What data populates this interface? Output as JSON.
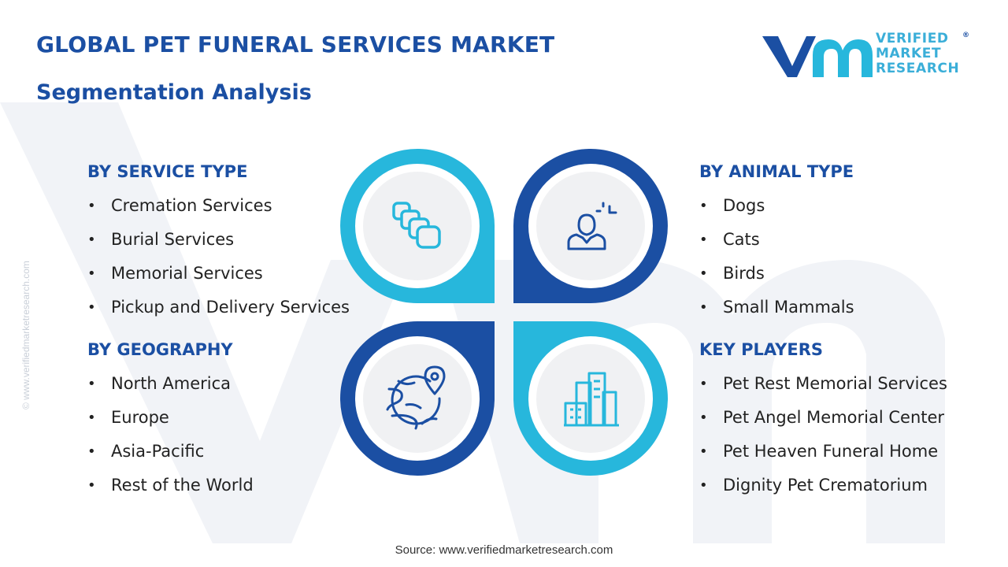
{
  "header": {
    "title": "GLOBAL PET FUNERAL SERVICES MARKET",
    "subtitle": "Segmentation Analysis"
  },
  "logo": {
    "line1": "VERIFIED",
    "line2": "MARKET",
    "line3": "RESEARCH",
    "registered": "®"
  },
  "side_watermark": "© www.verifiedmarketresearch.com",
  "segments": {
    "service_type": {
      "heading": "BY SERVICE TYPE",
      "items": [
        "Cremation Services",
        "Burial Services",
        "Memorial Services",
        "Pickup and Delivery Services"
      ]
    },
    "geography": {
      "heading": "BY GEOGRAPHY",
      "items": [
        "North America",
        "Europe",
        "Asia-Pacific",
        "Rest of the World"
      ]
    },
    "animal_type": {
      "heading": "BY ANIMAL TYPE",
      "items": [
        "Dogs",
        "Cats",
        "Birds",
        "Small Mammals"
      ]
    },
    "key_players": {
      "heading": "KEY PLAYERS",
      "items": [
        "Pet Rest Memorial Services",
        "Pet Angel Memorial Center",
        "Pet Heaven Funeral Home",
        "Dignity Pet Crematorium"
      ]
    }
  },
  "icons": {
    "top_left": "stacked-cards-icon",
    "top_right": "user-profile-icon",
    "bottom_left": "globe-location-icon",
    "bottom_right": "city-buildings-icon"
  },
  "colors": {
    "dark_blue": "#1b4fa3",
    "light_blue": "#27b7dc",
    "circle_fill": "#f0f1f3"
  },
  "source": "Source: www.verifiedmarketresearch.com"
}
